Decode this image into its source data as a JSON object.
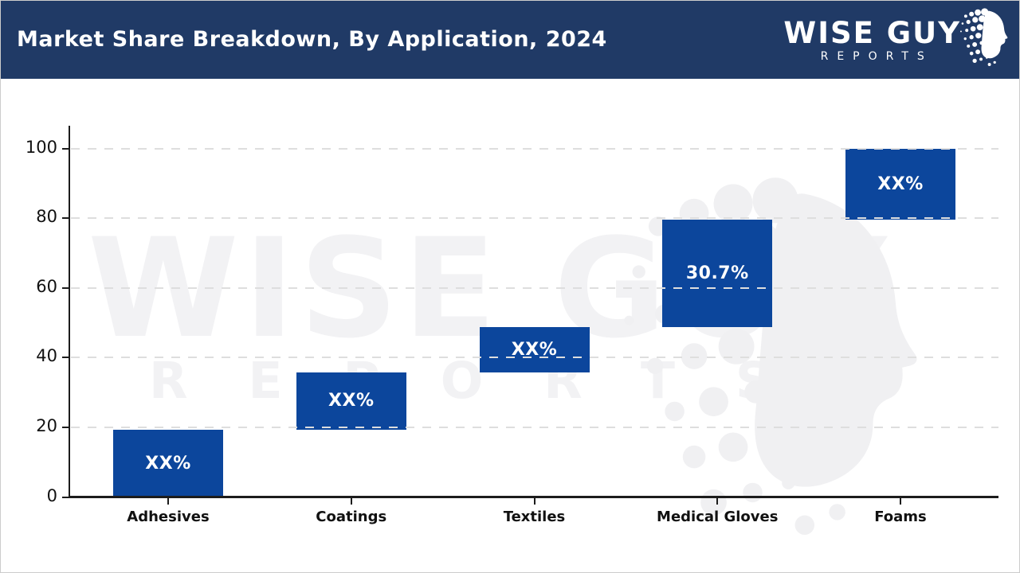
{
  "header": {
    "title": "Market Share Breakdown, By Application, 2024",
    "logo": {
      "line1": "WISE GUY",
      "line2": "REPORTS"
    }
  },
  "watermark": {
    "line1": "WISE GUY",
    "line2": "REPORTS"
  },
  "colors": {
    "header_bg": "#203a66",
    "bar": "#0c469c",
    "bar_label": "#ffffff",
    "axis": "#1c1c1c",
    "grid": "#dedede",
    "watermark": "#f2f2f4"
  },
  "chart_data": {
    "type": "bar",
    "subtype": "waterfall",
    "title": "Market Share Breakdown, By Application, 2024",
    "categories": [
      "Adhesives",
      "Coatings",
      "Textiles",
      "Medical Gloves",
      "Foams"
    ],
    "segments": [
      {
        "category": "Adhesives",
        "start": 0,
        "end": 19.3,
        "label": "XX%"
      },
      {
        "category": "Coatings",
        "start": 19.3,
        "end": 35.8,
        "label": "XX%"
      },
      {
        "category": "Textiles",
        "start": 35.8,
        "end": 48.8,
        "label": "XX%"
      },
      {
        "category": "Medical Gloves",
        "start": 48.8,
        "end": 79.5,
        "label": "30.7%"
      },
      {
        "category": "Foams",
        "start": 79.5,
        "end": 100,
        "label": "XX%"
      }
    ],
    "y_ticks": [
      0,
      20,
      40,
      60,
      80,
      100
    ],
    "ylim": [
      0,
      106
    ],
    "xlabel": "",
    "ylabel": "",
    "grid": "horizontal-dashed",
    "legend": "none",
    "bar_color": "#0c469c",
    "value_label_color": "#ffffff"
  }
}
